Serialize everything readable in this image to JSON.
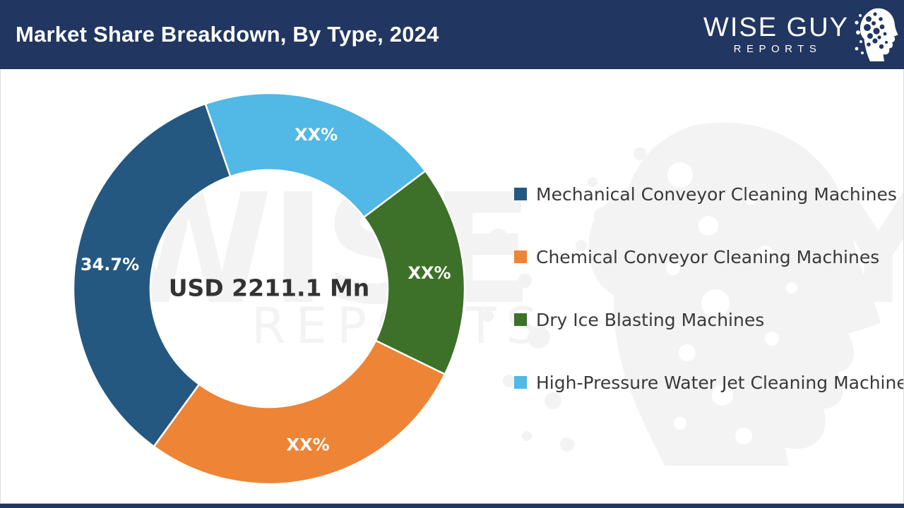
{
  "header": {
    "title": "Market Share Breakdown, By Type, 2024"
  },
  "logo": {
    "line1": "WISE GUY",
    "line2": "REPORTS"
  },
  "watermark": {
    "line1": "WISE GUY",
    "line2": "REPORTS"
  },
  "colors": {
    "header_bg": "#213660",
    "content_border": "#d0d0d0",
    "center_text": "#333333",
    "legend_text": "#393939",
    "watermark_gray": "#f3f3f3",
    "slice_label_text": "#ffffff"
  },
  "chart_data": {
    "type": "pie",
    "subtype": "donut",
    "title": "Market Share Breakdown, By Type, 2024",
    "center_label": "USD 2211.1 Mn",
    "legend_position": "right",
    "start_angle_deg": 109,
    "direction": "counterclockwise",
    "segments": [
      {
        "name": "Mechanical Conveyor Cleaning Machines",
        "value_pct": 34.7,
        "label": "34.7%",
        "color": "#245880"
      },
      {
        "name": "Chemical Conveyor Cleaning Machines",
        "value_pct": 27.8,
        "label": "XX%",
        "color": "#EE8435"
      },
      {
        "name": "Dry Ice Blasting Machines",
        "value_pct": 17.5,
        "label": "XX%",
        "color": "#3D7028"
      },
      {
        "name": "High-Pressure Water Jet Cleaning Machines",
        "value_pct": 20.0,
        "label": "XX%",
        "color": "#52B8E5"
      }
    ]
  }
}
